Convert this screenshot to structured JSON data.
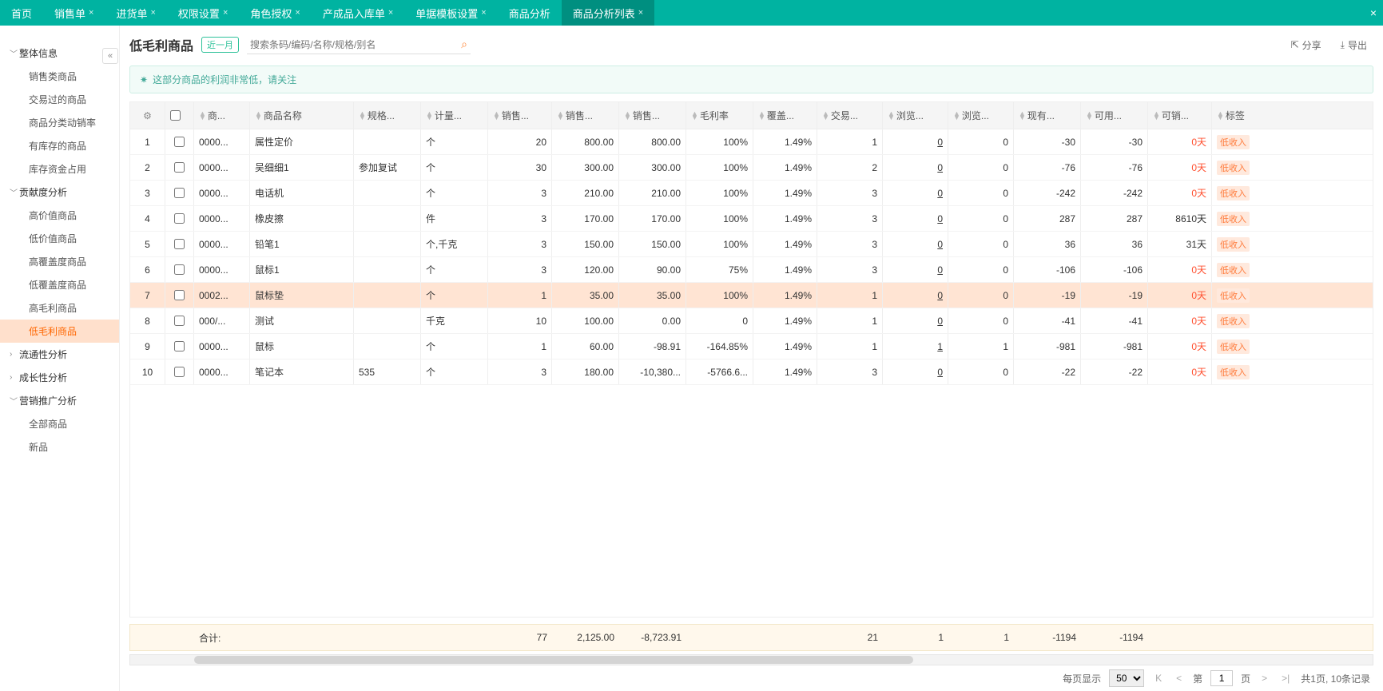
{
  "tabs": [
    {
      "label": "首页",
      "closable": false
    },
    {
      "label": "销售单",
      "closable": true
    },
    {
      "label": "进货单",
      "closable": true
    },
    {
      "label": "权限设置",
      "closable": true
    },
    {
      "label": "角色授权",
      "closable": true
    },
    {
      "label": "产成品入库单",
      "closable": true
    },
    {
      "label": "单据模板设置",
      "closable": true
    },
    {
      "label": "商品分析",
      "closable": false
    },
    {
      "label": "商品分析列表",
      "closable": true,
      "active": true
    }
  ],
  "sidebar": [
    {
      "type": "head",
      "label": "整体信息",
      "expanded": true
    },
    {
      "type": "item",
      "label": "销售类商品"
    },
    {
      "type": "item",
      "label": "交易过的商品"
    },
    {
      "type": "item",
      "label": "商品分类动销率"
    },
    {
      "type": "item",
      "label": "有库存的商品"
    },
    {
      "type": "item",
      "label": "库存资金占用"
    },
    {
      "type": "head",
      "label": "贡献度分析",
      "expanded": true
    },
    {
      "type": "item",
      "label": "高价值商品"
    },
    {
      "type": "item",
      "label": "低价值商品"
    },
    {
      "type": "item",
      "label": "高覆盖度商品"
    },
    {
      "type": "item",
      "label": "低覆盖度商品"
    },
    {
      "type": "item",
      "label": "高毛利商品"
    },
    {
      "type": "item",
      "label": "低毛利商品",
      "active": true
    },
    {
      "type": "head",
      "label": "流通性分析",
      "expanded": false
    },
    {
      "type": "head",
      "label": "成长性分析",
      "expanded": false
    },
    {
      "type": "head",
      "label": "营销推广分析",
      "expanded": true
    },
    {
      "type": "item",
      "label": "全部商品"
    },
    {
      "type": "item",
      "label": "新品"
    }
  ],
  "page": {
    "title": "低毛利商品",
    "period_badge": "近一月",
    "search_placeholder": "搜索条码/编码/名称/规格/别名",
    "share_label": "分享",
    "export_label": "导出",
    "notice_text": "这部分商品的利润非常低，请关注"
  },
  "columns": [
    "商...",
    "商品名称",
    "规格...",
    "计量...",
    "销售...",
    "销售...",
    "销售...",
    "毛利率",
    "覆盖...",
    "交易...",
    "浏览...",
    "浏览...",
    "现有...",
    "可用...",
    "可销...",
    "标签"
  ],
  "rows": [
    {
      "rn": "1",
      "code": "0000...",
      "name": "属性定价",
      "spec": "",
      "unit": "个",
      "qty": "20",
      "amt1": "800.00",
      "amt2": "800.00",
      "gm": "100%",
      "cov": "1.49%",
      "trade": "1",
      "view1": "0",
      "view2": "0",
      "stock": "-30",
      "avail": "-30",
      "days": "0天",
      "days_red": true,
      "tag": "低收入"
    },
    {
      "rn": "2",
      "code": "0000...",
      "name": "吴细细1",
      "spec": "参加复试",
      "unit": "个",
      "qty": "30",
      "amt1": "300.00",
      "amt2": "300.00",
      "gm": "100%",
      "cov": "1.49%",
      "trade": "2",
      "view1": "0",
      "view2": "0",
      "stock": "-76",
      "avail": "-76",
      "days": "0天",
      "days_red": true,
      "tag": "低收入"
    },
    {
      "rn": "3",
      "code": "0000...",
      "name": "电话机",
      "spec": "",
      "unit": "个",
      "qty": "3",
      "amt1": "210.00",
      "amt2": "210.00",
      "gm": "100%",
      "cov": "1.49%",
      "trade": "3",
      "view1": "0",
      "view2": "0",
      "stock": "-242",
      "avail": "-242",
      "days": "0天",
      "days_red": true,
      "tag": "低收入"
    },
    {
      "rn": "4",
      "code": "0000...",
      "name": "橡皮擦",
      "spec": "",
      "unit": "件",
      "qty": "3",
      "amt1": "170.00",
      "amt2": "170.00",
      "gm": "100%",
      "cov": "1.49%",
      "trade": "3",
      "view1": "0",
      "view2": "0",
      "stock": "287",
      "avail": "287",
      "days": "8610天",
      "days_red": false,
      "tag": "低收入"
    },
    {
      "rn": "5",
      "code": "0000...",
      "name": "铅笔1",
      "spec": "",
      "unit": "个,千克",
      "qty": "3",
      "amt1": "150.00",
      "amt2": "150.00",
      "gm": "100%",
      "cov": "1.49%",
      "trade": "3",
      "view1": "0",
      "view2": "0",
      "stock": "36",
      "avail": "36",
      "days": "31天",
      "days_red": false,
      "tag": "低收入"
    },
    {
      "rn": "6",
      "code": "0000...",
      "name": "鼠标1",
      "spec": "",
      "unit": "个",
      "qty": "3",
      "amt1": "120.00",
      "amt2": "90.00",
      "gm": "75%",
      "cov": "1.49%",
      "trade": "3",
      "view1": "0",
      "view2": "0",
      "stock": "-106",
      "avail": "-106",
      "days": "0天",
      "days_red": true,
      "tag": "低收入"
    },
    {
      "rn": "7",
      "code": "0002...",
      "name": "鼠标垫",
      "spec": "",
      "unit": "个",
      "qty": "1",
      "amt1": "35.00",
      "amt2": "35.00",
      "gm": "100%",
      "cov": "1.49%",
      "trade": "1",
      "view1": "0",
      "view2": "0",
      "stock": "-19",
      "avail": "-19",
      "days": "0天",
      "days_red": true,
      "tag": "低收入",
      "hl": true
    },
    {
      "rn": "8",
      "code": "000/...",
      "name": "测试",
      "spec": "",
      "unit": "千克",
      "qty": "10",
      "amt1": "100.00",
      "amt2": "0.00",
      "gm": "0",
      "cov": "1.49%",
      "trade": "1",
      "view1": "0",
      "view2": "0",
      "stock": "-41",
      "avail": "-41",
      "days": "0天",
      "days_red": true,
      "tag": "低收入"
    },
    {
      "rn": "9",
      "code": "0000...",
      "name": "鼠标",
      "spec": "",
      "unit": "个",
      "qty": "1",
      "amt1": "60.00",
      "amt2": "-98.91",
      "gm": "-164.85%",
      "cov": "1.49%",
      "trade": "1",
      "view1": "1",
      "view2": "1",
      "stock": "-981",
      "avail": "-981",
      "days": "0天",
      "days_red": true,
      "tag": "低收入"
    },
    {
      "rn": "10",
      "code": "0000...",
      "name": "笔记本",
      "spec": "535",
      "unit": "个",
      "qty": "3",
      "amt1": "180.00",
      "amt2": "-10,380...",
      "gm": "-5766.6...",
      "cov": "1.49%",
      "trade": "3",
      "view1": "0",
      "view2": "0",
      "stock": "-22",
      "avail": "-22",
      "days": "0天",
      "days_red": true,
      "tag": "低收入"
    }
  ],
  "totals": {
    "label": "合计:",
    "qty": "77",
    "amt1": "2,125.00",
    "amt2": "-8,723.91",
    "trade": "21",
    "view1": "1",
    "view2": "1",
    "stock": "-1194",
    "avail": "-1194"
  },
  "footer": {
    "per_page_label": "每页显示",
    "per_page_value": "50",
    "page_prefix": "第",
    "page_value": "1",
    "page_suffix": "页",
    "summary": "共1页, 10条记录"
  }
}
